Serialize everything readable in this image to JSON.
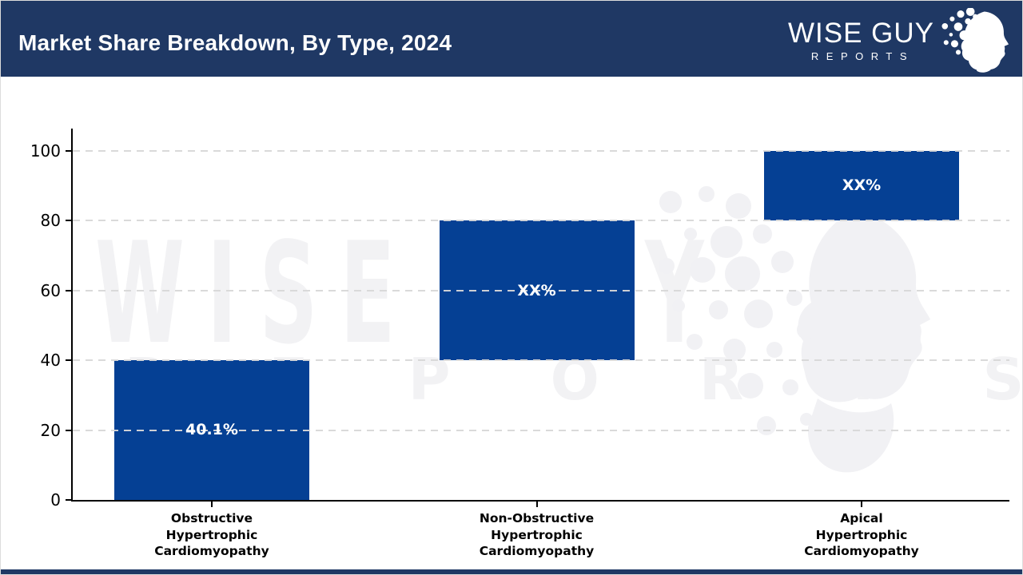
{
  "header": {
    "title": "Market Share Breakdown, By Type, 2024",
    "logo": {
      "line1": "WISE GUY",
      "line2": "REPORTS"
    }
  },
  "watermark": {
    "line1": "WISE GUY",
    "line2": "R E P O R T S"
  },
  "colors": {
    "navy": "#1f3864",
    "bar_blue": "#054094",
    "grid": "#d8d8d8",
    "watermark": "#f2f2f4",
    "value_label": "#ffffff",
    "axis_text": "#000000"
  },
  "chart_data": {
    "type": "bar",
    "subtype": "waterfall",
    "title": "Market Share Breakdown, By Type, 2024",
    "xlabel": "",
    "ylabel": "",
    "ylim": [
      0,
      106.3
    ],
    "yticks": [
      0,
      20,
      40,
      60,
      80,
      100
    ],
    "grid": "horizontal-dashed",
    "legend": "none",
    "categories": [
      [
        "Obstructive",
        "Hypertrophic",
        "Cardiomyopathy"
      ],
      [
        "Non-Obstructive",
        "Hypertrophic",
        "Cardiomyopathy"
      ],
      [
        "Apical",
        "Hypertrophic",
        "Cardiomyopathy"
      ]
    ],
    "bars": [
      {
        "start": 0,
        "end": 40.1,
        "value_label": "40.1%"
      },
      {
        "start": 40,
        "end": 80,
        "value_label": "XX%"
      },
      {
        "start": 80,
        "end": 100,
        "value_label": "XX%"
      }
    ]
  }
}
